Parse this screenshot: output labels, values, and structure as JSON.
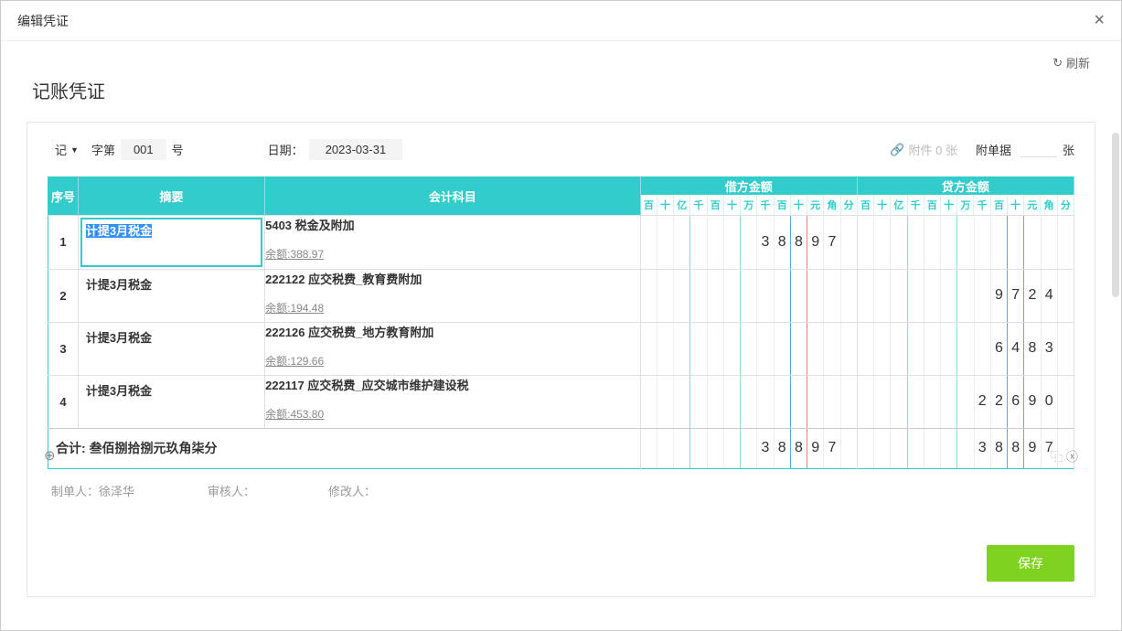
{
  "modal": {
    "title": "编辑凭证",
    "close": "×"
  },
  "refresh": {
    "label": "刷新"
  },
  "voucher_title": "记账凭证",
  "meta": {
    "type": "记",
    "zi_label": "字第",
    "number": "001",
    "hao_label": "号",
    "date_label": "日期：",
    "date": "2023-03-31",
    "attachment": "附件 0 张",
    "attach_doc_label": "附单据",
    "zhang": "张"
  },
  "columns": {
    "seq": "序号",
    "summary": "摘要",
    "subject": "会计科目",
    "debit": "借方金额",
    "credit": "贷方金额",
    "units": [
      "百",
      "十",
      "亿",
      "千",
      "百",
      "十",
      "万",
      "千",
      "百",
      "十",
      "元",
      "角",
      "分"
    ]
  },
  "rows": [
    {
      "seq": "1",
      "summary": "计提3月税金",
      "subject": "5403 税金及附加",
      "balance": "余额:388.97",
      "debit": [
        "",
        "",
        "",
        "",
        "",
        "",
        "",
        "3",
        "8",
        "8",
        "9",
        "7",
        ""
      ],
      "credit": [
        "",
        "",
        "",
        "",
        "",
        "",
        "",
        "",
        "",
        "",
        "",
        "",
        ""
      ],
      "active": true
    },
    {
      "seq": "2",
      "summary": "计提3月税金",
      "subject": "222122 应交税费_教育费附加",
      "balance": "余额:194.48",
      "debit": [
        "",
        "",
        "",
        "",
        "",
        "",
        "",
        "",
        "",
        "",
        "",
        "",
        ""
      ],
      "credit": [
        "",
        "",
        "",
        "",
        "",
        "",
        "",
        "",
        "9",
        "7",
        "2",
        "4",
        ""
      ]
    },
    {
      "seq": "3",
      "summary": "计提3月税金",
      "subject": "222126 应交税费_地方教育附加",
      "balance": "余额:129.66",
      "debit": [
        "",
        "",
        "",
        "",
        "",
        "",
        "",
        "",
        "",
        "",
        "",
        "",
        ""
      ],
      "credit": [
        "",
        "",
        "",
        "",
        "",
        "",
        "",
        "",
        "6",
        "4",
        "8",
        "3",
        ""
      ]
    },
    {
      "seq": "4",
      "summary": "计提3月税金",
      "subject": "222117 应交税费_应交城市维护建设税",
      "balance": "余额:453.80",
      "debit": [
        "",
        "",
        "",
        "",
        "",
        "",
        "",
        "",
        "",
        "",
        "",
        "",
        ""
      ],
      "credit": [
        "",
        "",
        "",
        "",
        "",
        "",
        "",
        "2",
        "2",
        "6",
        "9",
        "0",
        ""
      ]
    }
  ],
  "total": {
    "label": "合计:",
    "text": "叁佰捌拾捌元玖角柒分",
    "debit": [
      "",
      "",
      "",
      "",
      "",
      "",
      "",
      "3",
      "8",
      "8",
      "9",
      "7",
      ""
    ],
    "credit": [
      "",
      "",
      "",
      "",
      "",
      "",
      "",
      "3",
      "8",
      "8",
      "9",
      "7",
      ""
    ]
  },
  "footer": {
    "maker_label": "制单人：",
    "maker": "徐泽华",
    "auditor_label": "审核人：",
    "modifier_label": "修改人："
  },
  "save_label": "保存",
  "icons": {
    "copy": "⿻",
    "delete": "ⓧ",
    "add": "⊕",
    "attach": "🔗",
    "refresh": "↻"
  }
}
